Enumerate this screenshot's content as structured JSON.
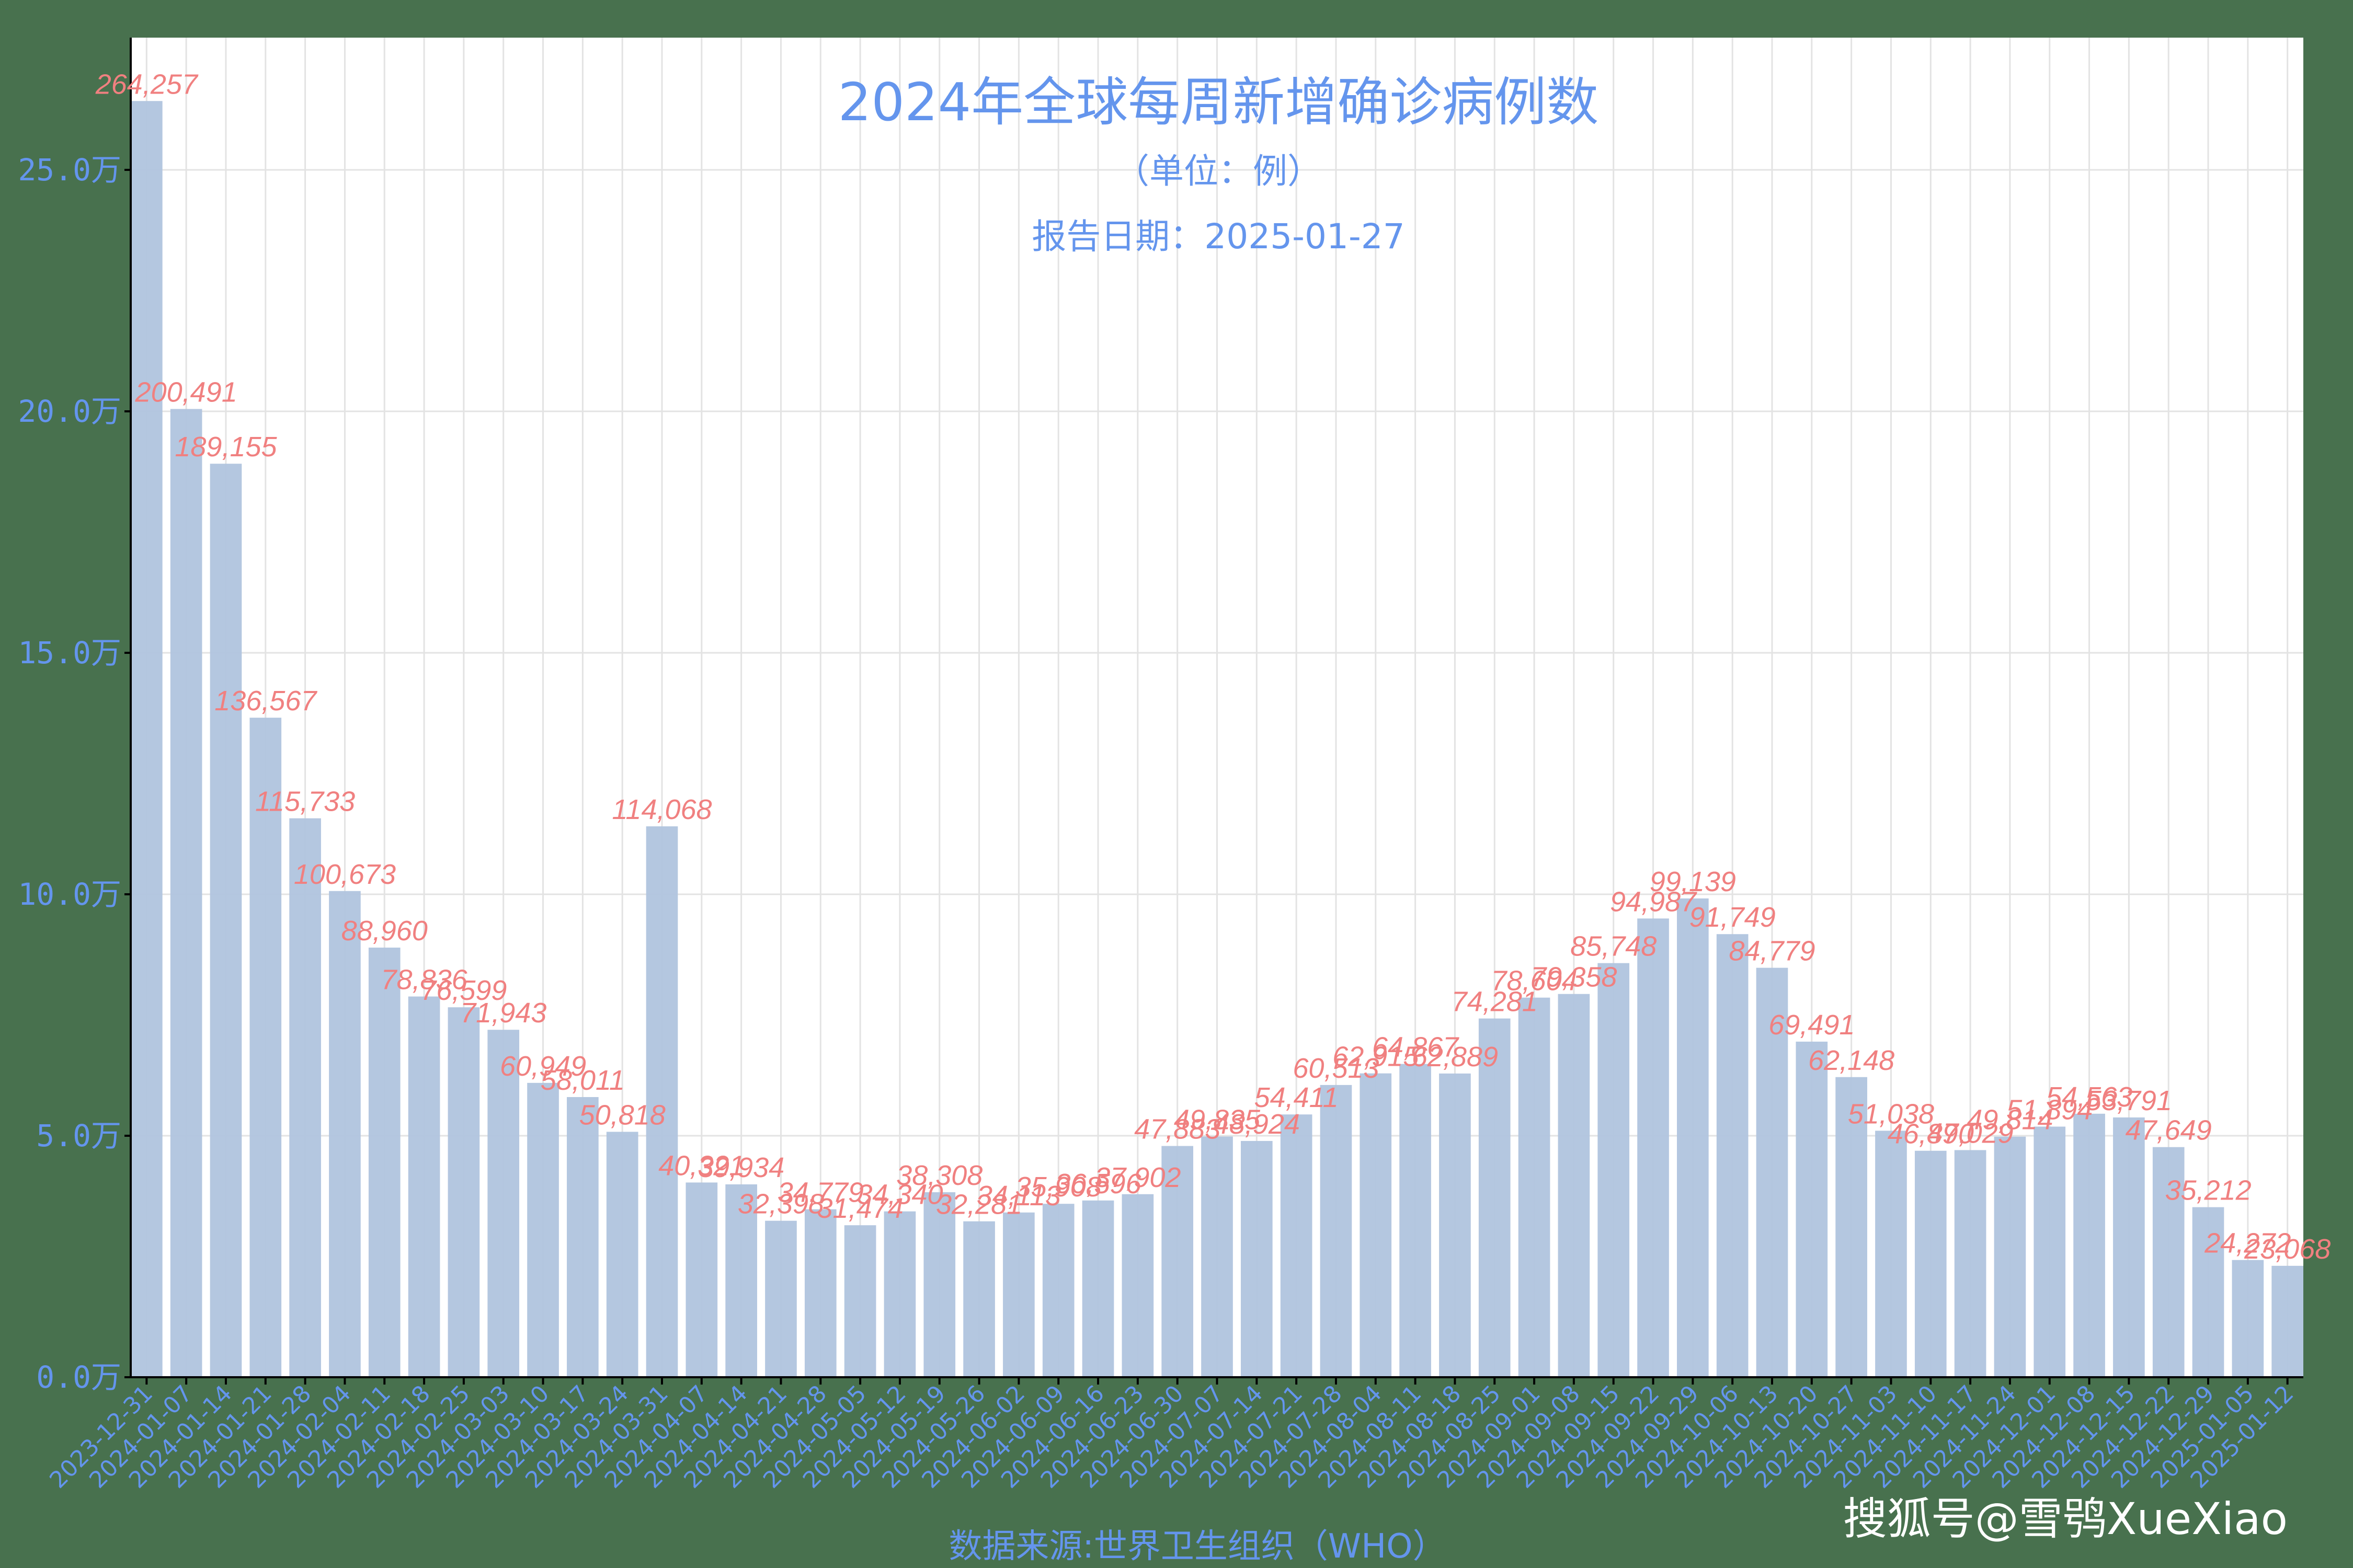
{
  "chart_data": {
    "type": "bar",
    "title": "2024年全球每周新增确诊病例数",
    "subtitle": "（单位：例）",
    "report_date": "报告日期：2025-01-27",
    "xlabel": "",
    "ylabel": "",
    "ylim": [
      0,
      275000
    ],
    "yticks": [
      0,
      50000,
      100000,
      150000,
      200000,
      250000
    ],
    "ytick_labels": [
      "0.0万",
      "5.0万",
      "10.0万",
      "15.0万",
      "20.0万",
      "25.0万"
    ],
    "grid": true,
    "source": "数据来源:世界卫生组织（WHO）",
    "watermark": "搜狐号@雪鸮XueXiao",
    "colors": {
      "bar": "#b0c4de",
      "value_label": "#f08080",
      "text": "#6495ed",
      "background": "#48714e",
      "plot": "#ffffff"
    },
    "categories": [
      "2023-12-31",
      "2024-01-07",
      "2024-01-14",
      "2024-01-21",
      "2024-01-28",
      "2024-02-04",
      "2024-02-11",
      "2024-02-18",
      "2024-02-25",
      "2024-03-03",
      "2024-03-10",
      "2024-03-17",
      "2024-03-24",
      "2024-03-31",
      "2024-04-07",
      "2024-04-14",
      "2024-04-21",
      "2024-04-28",
      "2024-05-05",
      "2024-05-12",
      "2024-05-19",
      "2024-05-26",
      "2024-06-02",
      "2024-06-09",
      "2024-06-16",
      "2024-06-23",
      "2024-06-30",
      "2024-07-07",
      "2024-07-14",
      "2024-07-21",
      "2024-07-28",
      "2024-08-04",
      "2024-08-11",
      "2024-08-18",
      "2024-08-25",
      "2024-09-01",
      "2024-09-08",
      "2024-09-15",
      "2024-09-22",
      "2024-09-29",
      "2024-10-06",
      "2024-10-13",
      "2024-10-20",
      "2024-10-27",
      "2024-11-03",
      "2024-11-10",
      "2024-11-17",
      "2024-11-24",
      "2024-12-01",
      "2024-12-08",
      "2024-12-15",
      "2024-12-22",
      "2024-12-29",
      "2025-01-05",
      "2025-01-12"
    ],
    "values": [
      264257,
      200491,
      189155,
      136567,
      115733,
      100673,
      88960,
      78836,
      76599,
      71943,
      60949,
      58011,
      50818,
      114068,
      40321,
      39934,
      32398,
      34779,
      31474,
      34340,
      38308,
      32281,
      34113,
      35908,
      36596,
      37902,
      47883,
      49835,
      48924,
      54411,
      60513,
      62915,
      64867,
      62889,
      74281,
      78604,
      79358,
      85748,
      94987,
      99139,
      91749,
      84779,
      69491,
      62148,
      51038,
      46890,
      47029,
      49814,
      51894,
      54563,
      53791,
      47649,
      35212,
      24272,
      23068
    ]
  }
}
